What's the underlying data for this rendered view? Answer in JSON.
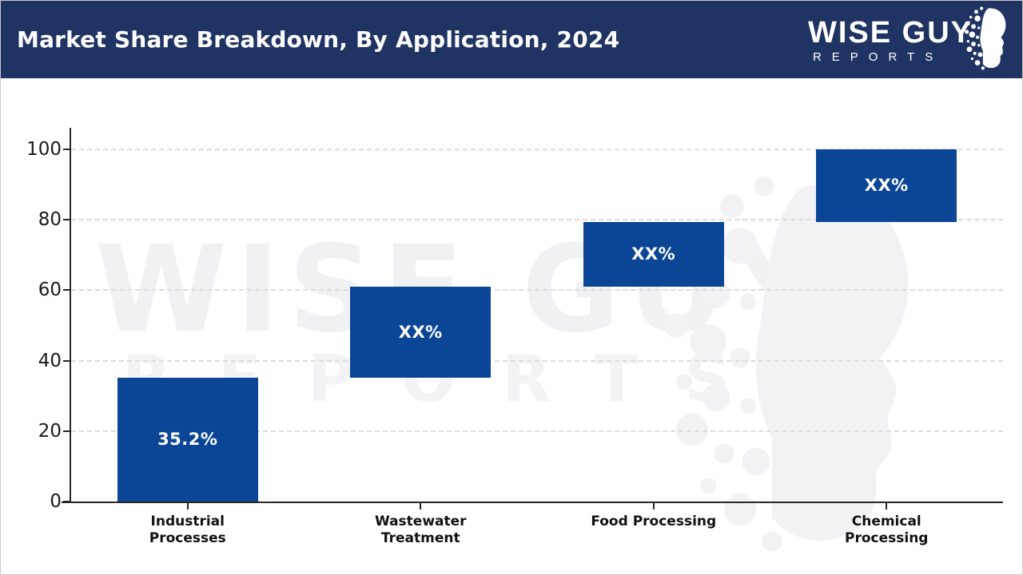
{
  "header": {
    "title": "Market Share Breakdown, By Application, 2024",
    "logo": {
      "wordmark": "WISE GUY",
      "reports": "REPORTS"
    }
  },
  "watermark": {
    "line1": "WISE GUY",
    "line2": "REPORTS"
  },
  "chart_data": {
    "type": "bar",
    "subtype": "waterfall",
    "title": "Market Share Breakdown, By Application, 2024",
    "categories": [
      "Industrial Processes",
      "Wastewater Treatment",
      "Food Processing",
      "Chemical Processing"
    ],
    "bars": [
      {
        "category": "Industrial Processes",
        "tick_lines": [
          "Industrial",
          "Processes"
        ],
        "start": 0,
        "end": 35.2,
        "label": "35.2%"
      },
      {
        "category": "Wastewater Treatment",
        "tick_lines": [
          "Wastewater",
          "Treatment"
        ],
        "start": 35.2,
        "end": 61.0,
        "label": "XX%"
      },
      {
        "category": "Food Processing",
        "tick_lines": [
          "Food Processing"
        ],
        "start": 61.0,
        "end": 79.4,
        "label": "XX%"
      },
      {
        "category": "Chemical Processing",
        "tick_lines": [
          "Chemical",
          "Processing"
        ],
        "start": 79.4,
        "end": 100,
        "label": "XX%"
      }
    ],
    "yticks": [
      0,
      20,
      40,
      60,
      80,
      100
    ],
    "ylim": [
      0,
      105
    ],
    "xlabel": "",
    "ylabel": "",
    "grid": "horizontal-dashed",
    "legend": "none",
    "bar_color": "#0b4696",
    "bar_label_color": "#ffffff",
    "header_color": "#203464",
    "gridline_color": "#dcdcdc",
    "axis_color": "#262626"
  }
}
